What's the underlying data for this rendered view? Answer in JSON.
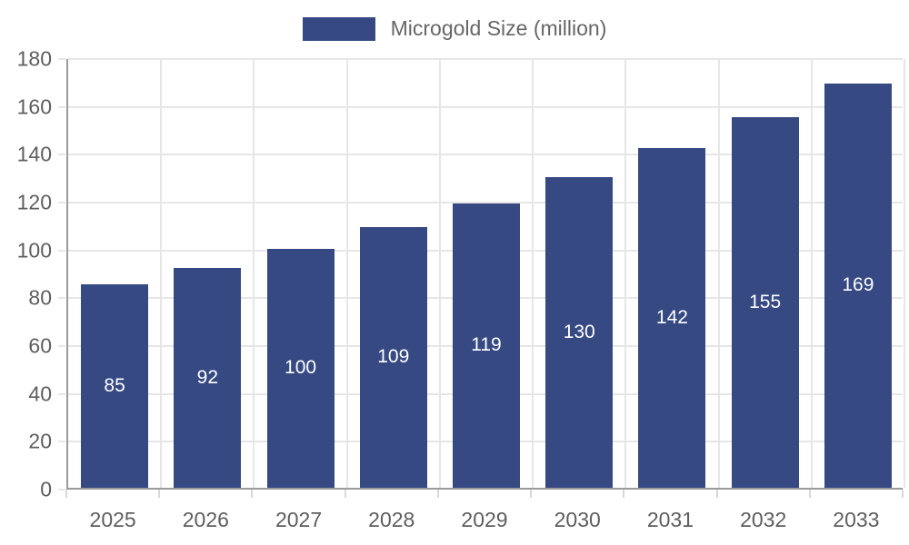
{
  "legend": {
    "label": "Microgold Size (million)"
  },
  "colors": {
    "bar": "#364983",
    "grid": "#e6e6e6",
    "axis": "#9a9a9a",
    "tick_text": "#5e5e5e",
    "legend_text": "#666666",
    "bar_label": "#ffffff",
    "background": "#ffffff"
  },
  "chart_data": {
    "type": "bar",
    "title": "",
    "xlabel": "",
    "ylabel": "",
    "categories": [
      "2025",
      "2026",
      "2027",
      "2028",
      "2029",
      "2030",
      "2031",
      "2032",
      "2033"
    ],
    "series": [
      {
        "name": "Microgold Size (million)",
        "values": [
          85,
          92,
          100,
          109,
          119,
          130,
          142,
          155,
          169
        ]
      }
    ],
    "bar_value_labels": [
      "85",
      "92",
      "100",
      "109",
      "119",
      "130",
      "142",
      "155",
      "169"
    ],
    "y_tick_labels": [
      "0",
      "20",
      "40",
      "60",
      "80",
      "100",
      "120",
      "140",
      "160",
      "180"
    ],
    "ylim": [
      0,
      180
    ],
    "ytick_step": 20,
    "grid": true,
    "legend_position": "top"
  }
}
